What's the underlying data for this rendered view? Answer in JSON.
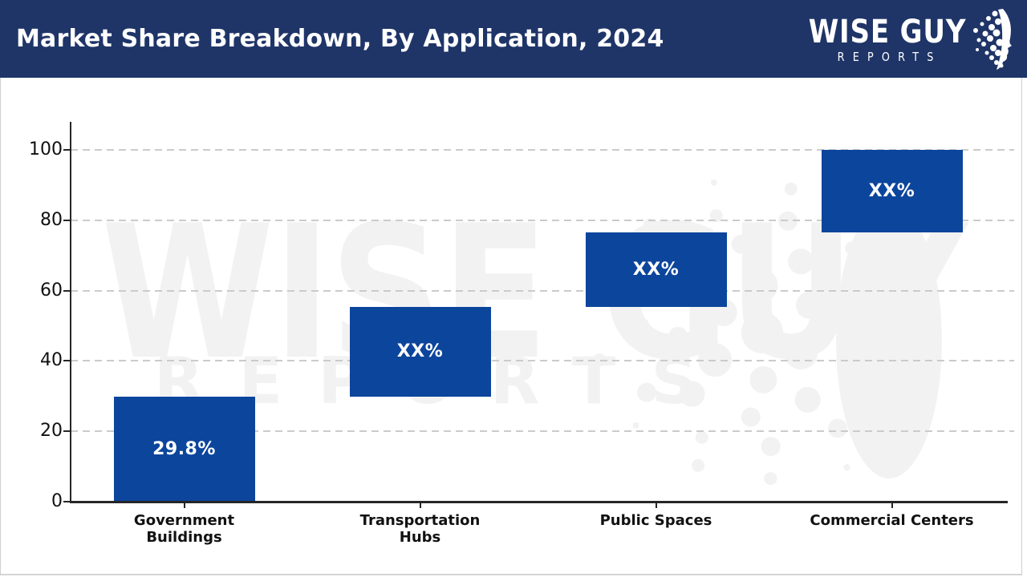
{
  "header": {
    "title": "Market Share Breakdown, By Application, 2024",
    "logo": {
      "line1": "WISE GUY",
      "line2": "REPORTS"
    }
  },
  "watermark": {
    "line1": "WISE GUY",
    "line2": "REPORTS"
  },
  "colors": {
    "header_bg": "#1f3568",
    "bar": "#0c459c",
    "axis": "#262626",
    "grid": "#cbcbcb",
    "bar_label": "#ffffff",
    "watermark": "#f2f2f2"
  },
  "chart_data": {
    "type": "bar",
    "subtype": "waterfall",
    "title": "Market Share Breakdown, By Application, 2024",
    "categories": [
      "Government\nBuildings",
      "Transportation\nHubs",
      "Public Spaces",
      "Commercial Centers"
    ],
    "bars": [
      {
        "category": "Government Buildings",
        "start": 0,
        "end": 29.8,
        "label": "29.8%"
      },
      {
        "category": "Transportation Hubs",
        "start": 29.8,
        "end": 55.4,
        "label": "XX%"
      },
      {
        "category": "Public Spaces",
        "start": 55.4,
        "end": 76.6,
        "label": "XX%"
      },
      {
        "category": "Commercial Centers",
        "start": 76.6,
        "end": 100,
        "label": "XX%"
      }
    ],
    "xlabel": "",
    "ylabel": "",
    "yticks": [
      0,
      20,
      40,
      60,
      80,
      100
    ],
    "ylim": [
      0,
      108
    ],
    "grid": "dashed-horizontal",
    "legend": "none"
  }
}
